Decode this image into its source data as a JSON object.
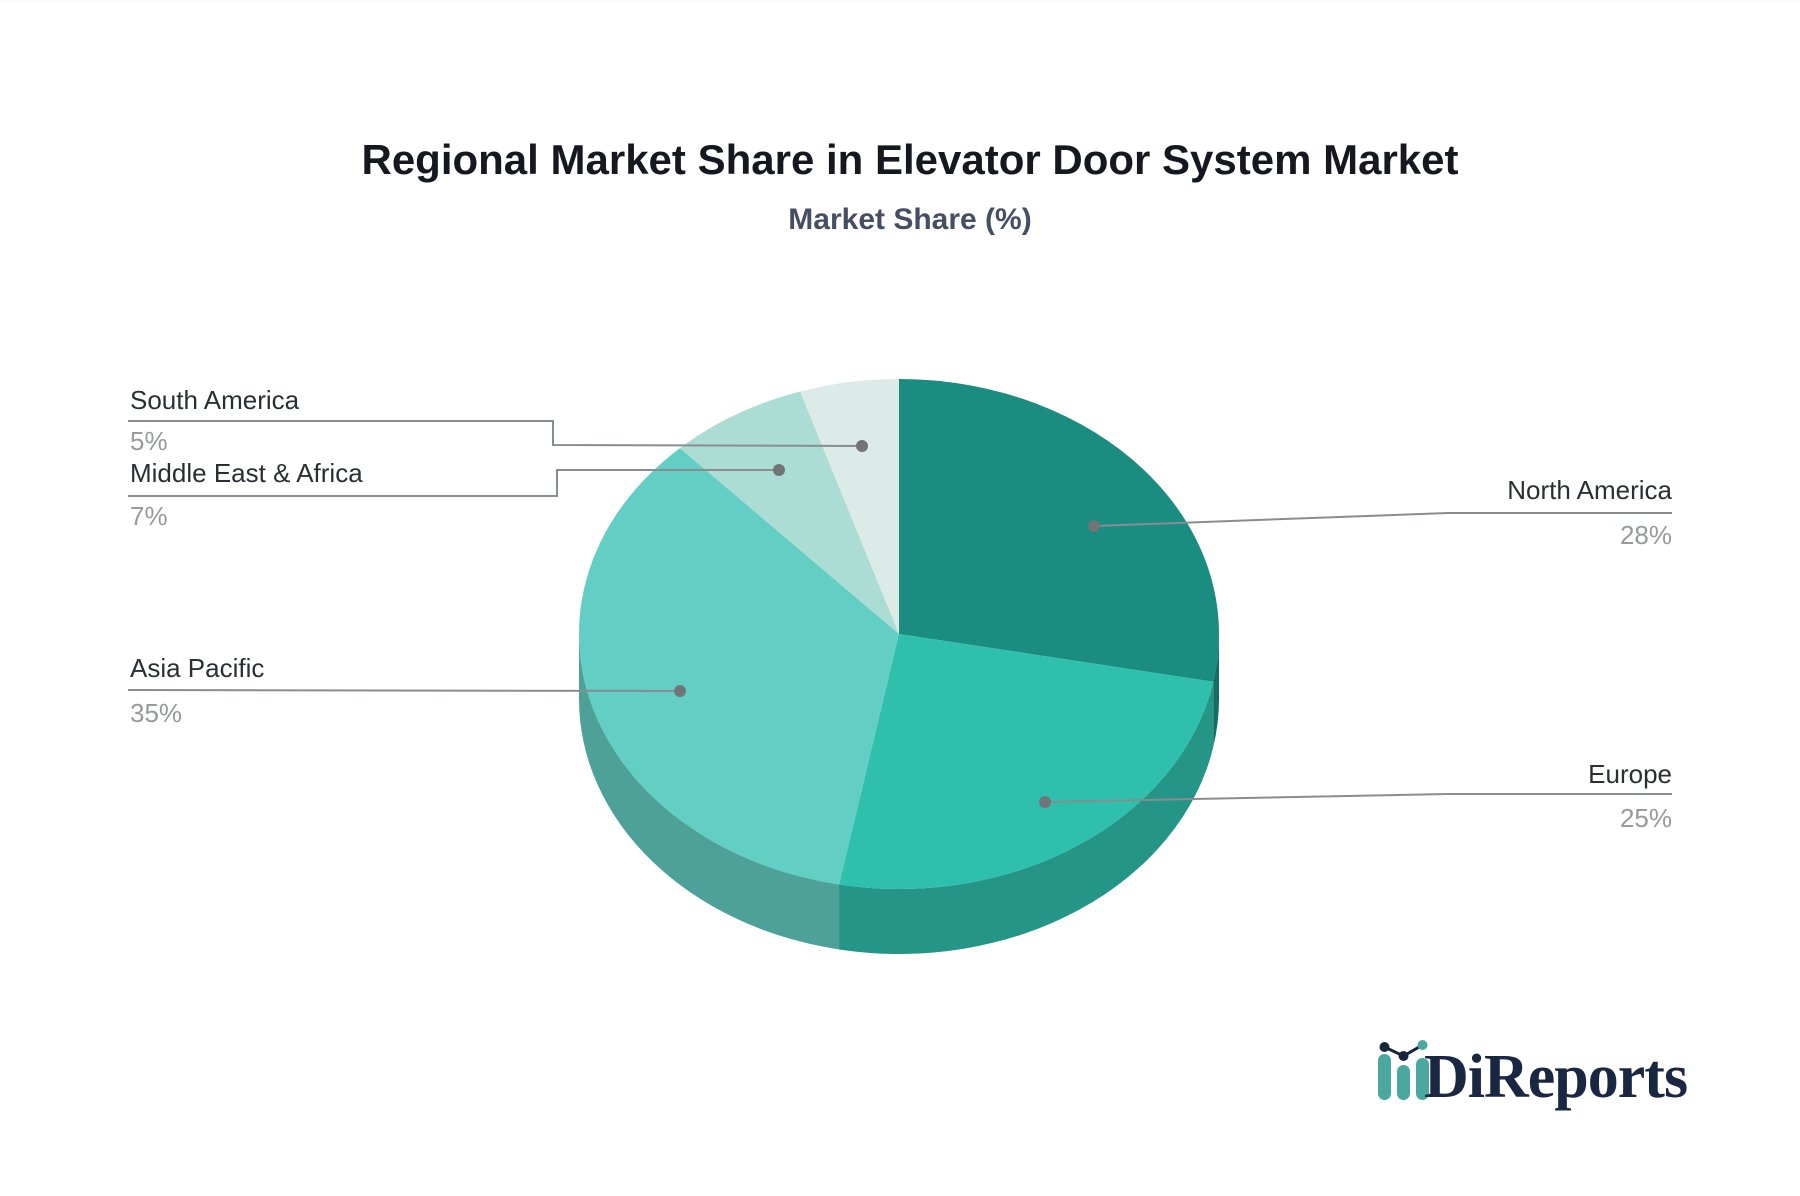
{
  "chart_data": {
    "type": "pie",
    "title": "Regional Market Share in Elevator Door System Market",
    "subtitle": "Market Share (%)",
    "unit": "%",
    "effect": "3d",
    "start_angle_deg": -90,
    "direction": "clockwise",
    "legend_position": "none",
    "slices": [
      {
        "label": "North America",
        "value": 28,
        "display": "28%",
        "color": "#1A8C80",
        "label_side": "right"
      },
      {
        "label": "Europe",
        "value": 25,
        "display": "25%",
        "color": "#2EBFAD",
        "label_side": "right"
      },
      {
        "label": "Asia Pacific",
        "value": 35,
        "display": "35%",
        "color": "#63CEC3",
        "label_side": "left"
      },
      {
        "label": "Middle East & Africa",
        "value": 7,
        "display": "7%",
        "color": "#ABDDD4",
        "label_side": "left"
      },
      {
        "label": "South America",
        "value": 5,
        "display": "5%",
        "color": "#DCEBE7",
        "label_side": "left"
      }
    ]
  },
  "branding": {
    "logo_text": "DiReports",
    "logo_icon": "bar-line-chart-icon"
  },
  "colors": {
    "background": "#FFFFFF",
    "title": "#15191F",
    "subtitle": "#454E63",
    "label": "#2B2F33",
    "value": "#97999B",
    "leader_line": "#8A8D90",
    "leader_dot": "#717578",
    "logo_text": "#1A2742",
    "logo_teal": "#4BA89F",
    "logo_navy": "#16243C"
  }
}
